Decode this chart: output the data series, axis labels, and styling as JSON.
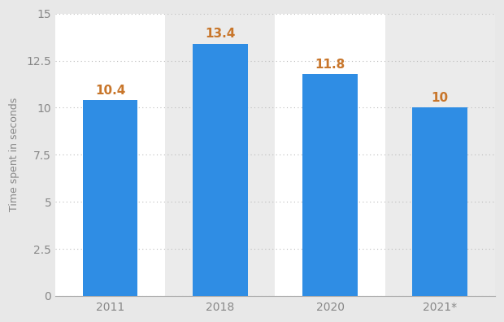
{
  "categories": [
    "2011",
    "2018",
    "2020",
    "2021*"
  ],
  "values": [
    10.4,
    13.4,
    11.8,
    10
  ],
  "bar_color": "#2f8de4",
  "bar_labels": [
    "10.4",
    "13.4",
    "11.8",
    "10"
  ],
  "ylabel": "Time spent in seconds",
  "ylim": [
    0,
    15
  ],
  "yticks": [
    0,
    2.5,
    5,
    7.5,
    10,
    12.5,
    15
  ],
  "ytick_labels": [
    "0",
    "2.5",
    "5",
    "7.5",
    "10",
    "12.5",
    "15"
  ],
  "figure_background_color": "#e8e8e8",
  "col_bg_white": "#ffffff",
  "col_bg_gray": "#ebebeb",
  "grid_color": "#bbbbbb",
  "label_color": "#c8762b",
  "tick_color": "#888888",
  "axis_label_fontsize": 9,
  "tick_label_fontsize": 10,
  "bar_label_fontsize": 11,
  "bar_width": 0.5
}
